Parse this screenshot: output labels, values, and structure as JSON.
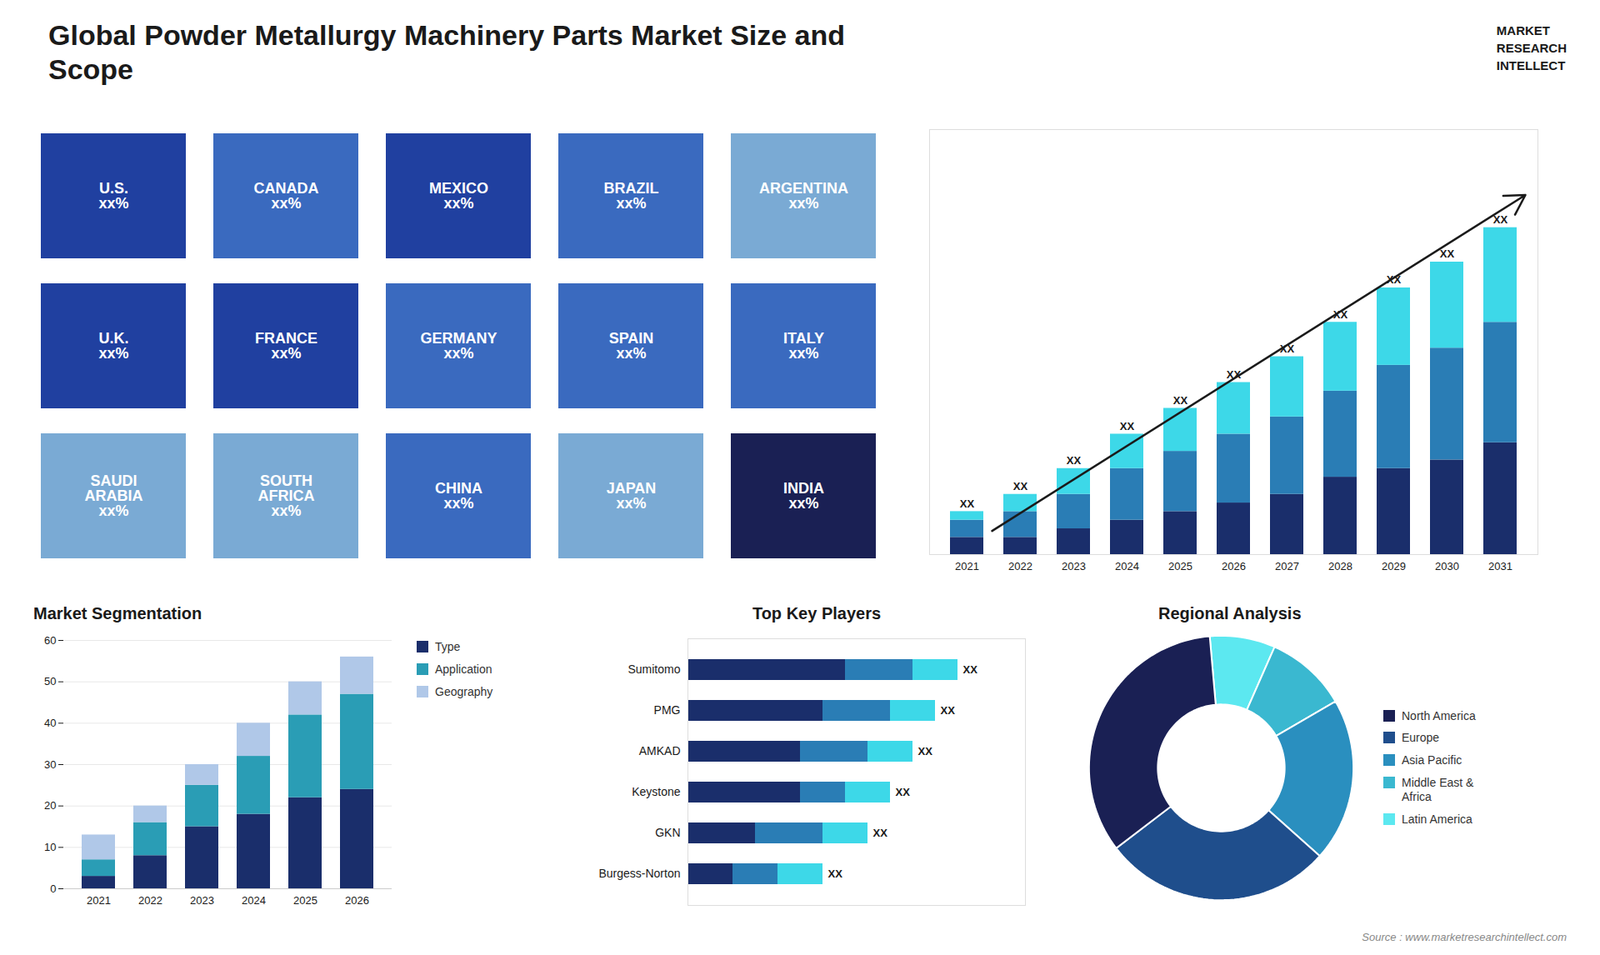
{
  "chart_data": [
    {
      "type": "bar",
      "title": "Global Powder Metallurgy Machinery Parts Market Size and\nScope",
      "stacked": true,
      "categories": [
        "2021",
        "2022",
        "2023",
        "2024",
        "2025",
        "2026",
        "2027",
        "2028",
        "2029",
        "2030",
        "2031"
      ],
      "series": [
        {
          "color": "#1a2e6b",
          "values": [
            2,
            2,
            3,
            4,
            5,
            6,
            7,
            9,
            10,
            11,
            13
          ]
        },
        {
          "color": "#2a7db5",
          "values": [
            2,
            3,
            4,
            6,
            7,
            8,
            9,
            10,
            12,
            13,
            14
          ]
        },
        {
          "color": "#3dd8e8",
          "values": [
            1,
            2,
            3,
            4,
            5,
            6,
            7,
            8,
            9,
            10,
            11
          ]
        }
      ],
      "ylim": [
        0,
        49.4
      ],
      "tick_labels": "x",
      "grid": false,
      "annotations": [
        {
          "text": "XX",
          "x": "2021"
        },
        {
          "text": "XX",
          "x": "2022"
        },
        {
          "text": "XX",
          "x": "2023"
        },
        {
          "text": "XX",
          "x": "2024"
        },
        {
          "text": "XX",
          "x": "2025"
        },
        {
          "text": "XX",
          "x": "2026"
        },
        {
          "text": "XX",
          "x": "2027"
        },
        {
          "text": "XX",
          "x": "2028"
        },
        {
          "text": "XX",
          "x": "2029"
        },
        {
          "text": "XX",
          "x": "2030"
        },
        {
          "text": "XX",
          "x": "2031"
        },
        {
          "text": "MARKET\nRESEARCH\nINTELLECT"
        },
        {
          "text": "Source : www.marketresearchintellect.com"
        }
      ]
    },
    {
      "type": "map",
      "categories": [
        "U.S.\nxx%",
        "CANADA\nxx%",
        "MEXICO\nxx%",
        "BRAZIL\nxx%",
        "ARGENTINA\nxx%",
        "U.K.\nxx%",
        "FRANCE\nxx%",
        "GERMANY\nxx%",
        "SPAIN\nxx%",
        "ITALY\nxx%",
        "SAUDI\nARABIA\nxx%",
        "SOUTH\nAFRICA\nxx%",
        "CHINA\nxx%",
        "JAPAN\nxx%",
        "INDIA\nxx%"
      ],
      "colors": [
        "#2040a0",
        "#3a6abf",
        "#2040a0",
        "#3a6abf",
        "#7aaad4",
        "#2040a0",
        "#2040a0",
        "#3a6abf",
        "#3a6abf",
        "#3a6abf",
        "#7aaad4",
        "#7aaad4",
        "#3a6abf",
        "#7aaad4",
        "#1a2054"
      ]
    },
    {
      "type": "bar",
      "title": "Market Segmentation",
      "stacked": true,
      "categories": [
        "2021",
        "2022",
        "2023",
        "2024",
        "2025",
        "2026"
      ],
      "series": [
        {
          "name": "Type",
          "color": "#1a2e6b",
          "values": [
            3,
            8,
            15,
            18,
            22,
            24
          ]
        },
        {
          "name": "Application",
          "color": "#2a9db5",
          "values": [
            4,
            8,
            10,
            14,
            20,
            23
          ]
        },
        {
          "name": "Geography",
          "color": "#b0c8e8",
          "values": [
            6,
            4,
            5,
            8,
            8,
            9
          ]
        }
      ],
      "ylim": [
        0,
        60
      ],
      "yticks": [
        0,
        10,
        20,
        30,
        40,
        50,
        60
      ],
      "grid": true,
      "legend": "right"
    },
    {
      "type": "bar",
      "title": "Top Key Players",
      "orientation": "horizontal",
      "stacked": true,
      "categories": [
        "Sumitomo",
        "PMG",
        "AMKAD",
        "Keystone",
        "GKN",
        "Burgess-Norton"
      ],
      "series": [
        {
          "color": "#1a2e6b",
          "values": [
            7,
            6,
            5,
            5,
            3,
            2
          ]
        },
        {
          "color": "#2a7db5",
          "values": [
            3,
            3,
            3,
            2,
            3,
            2
          ]
        },
        {
          "color": "#3dd8e8",
          "values": [
            2,
            2,
            2,
            2,
            2,
            2
          ]
        }
      ],
      "xlim": [
        0,
        15
      ],
      "tick_labels": "y",
      "grid": false,
      "annotations": [
        {
          "text": "XX",
          "y": "Sumitomo"
        },
        {
          "text": "XX",
          "y": "PMG"
        },
        {
          "text": "XX",
          "y": "AMKAD"
        },
        {
          "text": "XX",
          "y": "Keystone"
        },
        {
          "text": "XX",
          "y": "GKN"
        },
        {
          "text": "XX",
          "y": "Burgess-Norton"
        }
      ]
    },
    {
      "type": "pie",
      "title": "Regional Analysis",
      "categories": [
        "Latin America",
        "Middle East &\nAfrica",
        "Asia Pacific",
        "Europe",
        "North America"
      ],
      "values": [
        8,
        10,
        20,
        28,
        34
      ],
      "colors": [
        "#5ce8f0",
        "#3ab8d0",
        "#2a8fbf",
        "#1f4e8c",
        "#1a2054"
      ],
      "legend": "right"
    }
  ]
}
